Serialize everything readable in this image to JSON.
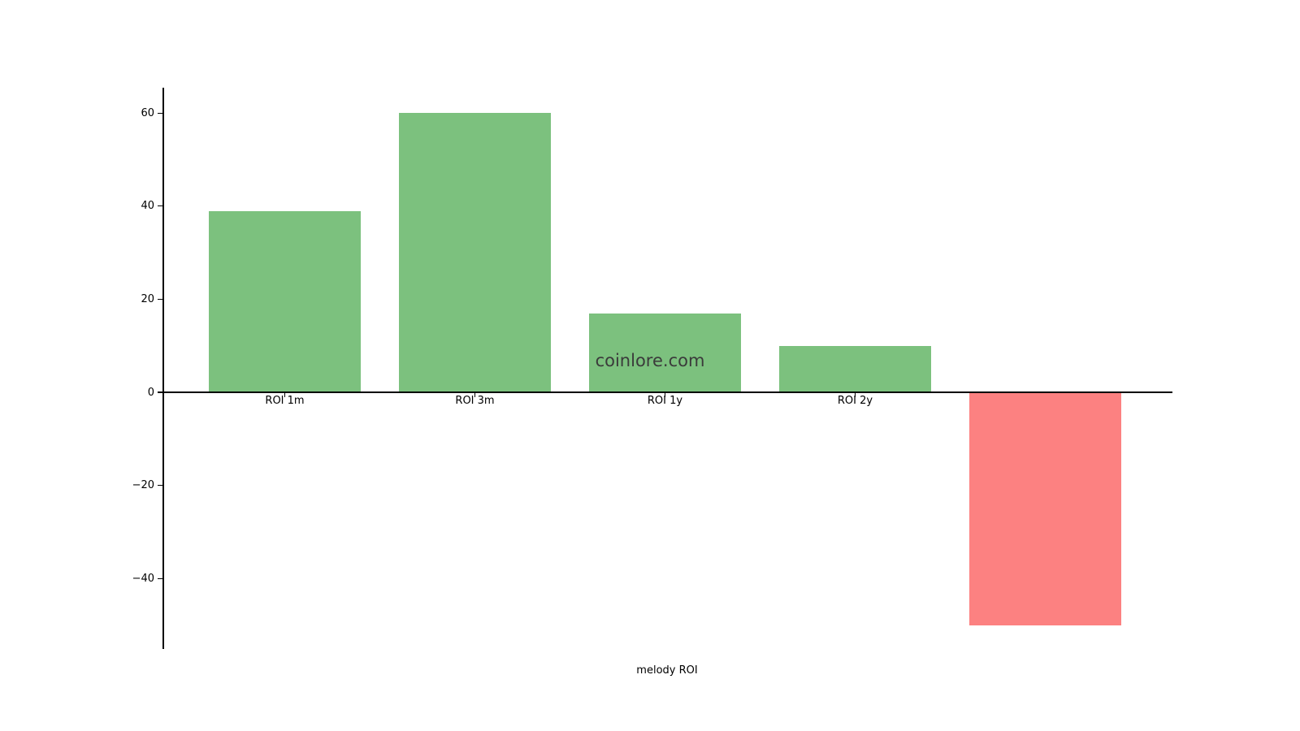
{
  "chart_data": {
    "type": "bar",
    "title": "",
    "xlabel": "melody ROI",
    "ylabel": "",
    "categories": [
      "ROI 1m",
      "ROI 3m",
      "ROI 1y",
      "ROI 2y",
      ""
    ],
    "values": [
      39,
      60,
      17,
      10,
      -50
    ],
    "bar_colors": [
      "#7cc17e",
      "#7cc17e",
      "#7cc17e",
      "#7cc17e",
      "#fc8181"
    ],
    "positive_color": "#7cc17e",
    "negative_color": "#fc8181",
    "yticks": [
      60,
      40,
      20,
      0,
      -20,
      -40
    ],
    "ytick_labels": [
      "60",
      "40",
      "20",
      "0",
      "−20",
      "−40"
    ],
    "ylim": [
      -55.5,
      65.5
    ],
    "grid": false,
    "legend": null,
    "axis_color": "#000000",
    "watermark": "coinlore.com",
    "watermark_color": "#3b3b3b"
  }
}
